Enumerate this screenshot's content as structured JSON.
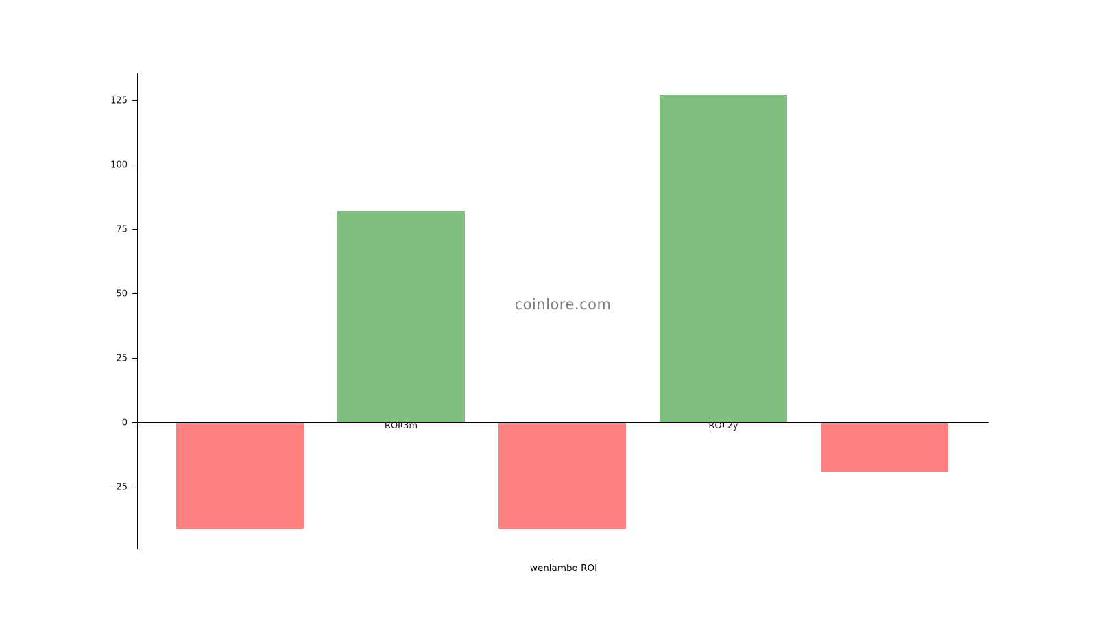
{
  "page": {
    "background": "#ffffff"
  },
  "watermark": {
    "text": "coinlore.com",
    "color": "#7f7f7f"
  },
  "chart_data": {
    "type": "bar",
    "title": "wenlambo ROI",
    "categories": [
      "",
      "ROI 3m",
      "",
      "ROI 2y",
      ""
    ],
    "values": [
      -41,
      82,
      -41,
      127,
      -19
    ],
    "colors": {
      "positive": "#80bf80",
      "negative": "#ff8080"
    },
    "y_ticks": [
      125,
      100,
      75,
      50,
      25,
      0,
      -25
    ],
    "ylim": [
      -49,
      135
    ],
    "xlabel": "",
    "ylabel": "",
    "grid": false,
    "legend": false,
    "baseline": 0
  }
}
